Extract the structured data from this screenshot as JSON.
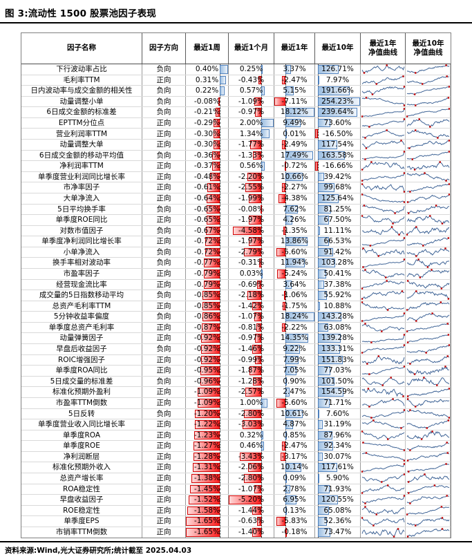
{
  "title": "图 3:流动性 1500 股票池因子表现",
  "source_note": "资料来源:Wind,光大证券研究所;统计截至 2025.04.03",
  "table": {
    "headers": [
      "因子名称",
      "因子方向",
      "最近1周",
      "最近1个月",
      "最近1年",
      "最近10年",
      "最近1年\n净值曲线",
      "最近10年\n净值曲线"
    ]
  },
  "colors": {
    "positive_bar_fill": "#9fc0e2",
    "positive_bar_border": "#4f81bd",
    "negative_bar_fill": "#ff1f1f",
    "negative_bar_border": "#d00000",
    "sparkline_line": "#3f6496",
    "sparkline_marker": "#c00000",
    "rule": "#000000"
  },
  "chart_data": {
    "type": "table",
    "title": "流动性 1500 股票池因子表现",
    "columns": [
      "因子名称",
      "因子方向",
      "最近1周",
      "最近1个月",
      "最近1年",
      "最近10年",
      "最近1年净值曲线",
      "最近10年净值曲线"
    ],
    "value_format": "percent",
    "rows": [
      [
        "下行波动率占比",
        "负向",
        0.4,
        0.25,
        3.37,
        126.71
      ],
      [
        "毛利率TTM",
        "正向",
        0.31,
        -0.43,
        -2.47,
        7.97
      ],
      [
        "日内波动率与成交金额的相关性",
        "负向",
        0.22,
        0.57,
        5.15,
        191.66
      ],
      [
        "动量调整小单",
        "负向",
        -0.08,
        -1.09,
        -7.11,
        254.23
      ],
      [
        "6日成交金额的标准差",
        "负向",
        -0.21,
        -0.97,
        18.12,
        239.64
      ],
      [
        "EPTTM分位点",
        "正向",
        -0.29,
        2.0,
        9.49,
        73.6
      ],
      [
        "营业利润率TTM",
        "正向",
        -0.3,
        1.34,
        0.01,
        -16.5
      ],
      [
        "动量调整大单",
        "正向",
        -0.3,
        -1.77,
        -2.49,
        117.54
      ],
      [
        "6日成交金额的移动平均值",
        "负向",
        -0.36,
        -1.33,
        17.49,
        163.58
      ],
      [
        "净利润率TTM",
        "正向",
        -0.37,
        0.56,
        -0.72,
        -16.66
      ],
      [
        "单季度营业利润同比增长率",
        "正向",
        -0.48,
        -2.2,
        10.66,
        39.42
      ],
      [
        "市净率因子",
        "正向",
        -0.61,
        -2.55,
        -2.27,
        99.68
      ],
      [
        "大单净流入",
        "正向",
        -0.64,
        -1.99,
        -4.38,
        125.64
      ],
      [
        "5日平均换手率",
        "负向",
        -0.65,
        -0.08,
        7.62,
        81.25
      ],
      [
        "单季度ROE同比",
        "正向",
        -0.65,
        -1.97,
        4.26,
        67.5
      ],
      [
        "对数市值因子",
        "负向",
        -0.67,
        -4.58,
        -1.35,
        11.11
      ],
      [
        "单季度净利润同比增长率",
        "正向",
        -0.72,
        -1.97,
        13.86,
        66.53
      ],
      [
        "小单净流入",
        "负向",
        -0.72,
        -2.79,
        -5.6,
        91.42
      ],
      [
        "换手率相对波动率",
        "负向",
        -0.77,
        -0.31,
        11.94,
        103.28
      ],
      [
        "市盈率因子",
        "正向",
        -0.79,
        0.03,
        -5.24,
        50.41
      ],
      [
        "经营现金流比率",
        "正向",
        -0.79,
        -0.69,
        3.64,
        37.38
      ],
      [
        "成交量的5日指数移动平均",
        "负向",
        -0.85,
        -2.18,
        -1.06,
        55.92
      ],
      [
        "总资产毛利率TTM",
        "正向",
        -0.85,
        -1.42,
        -1.75,
        10.88
      ],
      [
        "5分钟收益率偏度",
        "负向",
        -0.86,
        -1.07,
        18.24,
        143.28
      ],
      [
        "单季度总资产毛利率",
        "正向",
        -0.87,
        -0.81,
        -2.22,
        63.08
      ],
      [
        "动量弹簧因子",
        "正向",
        -0.92,
        -0.97,
        14.35,
        139.28
      ],
      [
        "早盘后收益因子",
        "负向",
        -0.92,
        -1.46,
        9.22,
        133.31
      ],
      [
        "ROIC增强因子",
        "正向",
        -0.92,
        -0.99,
        7.99,
        151.83
      ],
      [
        "单季度ROA同比",
        "正向",
        -0.95,
        -1.87,
        7.05,
        77.03
      ],
      [
        "5日成交量的标准差",
        "负向",
        -0.96,
        -1.28,
        0.9,
        101.5
      ],
      [
        "标准化预期外盈利",
        "正向",
        -1.09,
        -2.57,
        2.47,
        154.59
      ],
      [
        "市盈率TTM倒数",
        "正向",
        -1.09,
        1.0,
        -5.6,
        71.71
      ],
      [
        "5日反转",
        "负向",
        -1.2,
        -2.8,
        10.61,
        7.6
      ],
      [
        "单季度营业收入同比增长率",
        "正向",
        -1.22,
        -3.03,
        4.87,
        31.19
      ],
      [
        "单季度ROA",
        "正向",
        -1.23,
        0.32,
        0.85,
        87.96
      ],
      [
        "单季度ROE",
        "正向",
        -1.27,
        0.46,
        -2.47,
        92.34
      ],
      [
        "净利润断层",
        "正向",
        -1.28,
        -3.43,
        -3.17,
        30.07
      ],
      [
        "标准化预期外收入",
        "正向",
        -1.31,
        -2.06,
        10.14,
        117.61
      ],
      [
        "总资产增长率",
        "正向",
        -1.38,
        -2.8,
        0.09,
        5.9
      ],
      [
        "ROA稳定性",
        "正向",
        -1.45,
        -1.07,
        2.78,
        71.93
      ],
      [
        "早盘收益因子",
        "正向",
        -1.52,
        -5.2,
        6.95,
        120.55
      ],
      [
        "ROE稳定性",
        "正向",
        -1.58,
        -1.44,
        0.13,
        65.08
      ],
      [
        "单季度EPS",
        "正向",
        -1.65,
        -0.63,
        -5.83,
        52.36
      ],
      [
        "市销率TTM倒数",
        "正向",
        -1.65,
        -1.4,
        -0.18,
        73.47
      ]
    ]
  }
}
